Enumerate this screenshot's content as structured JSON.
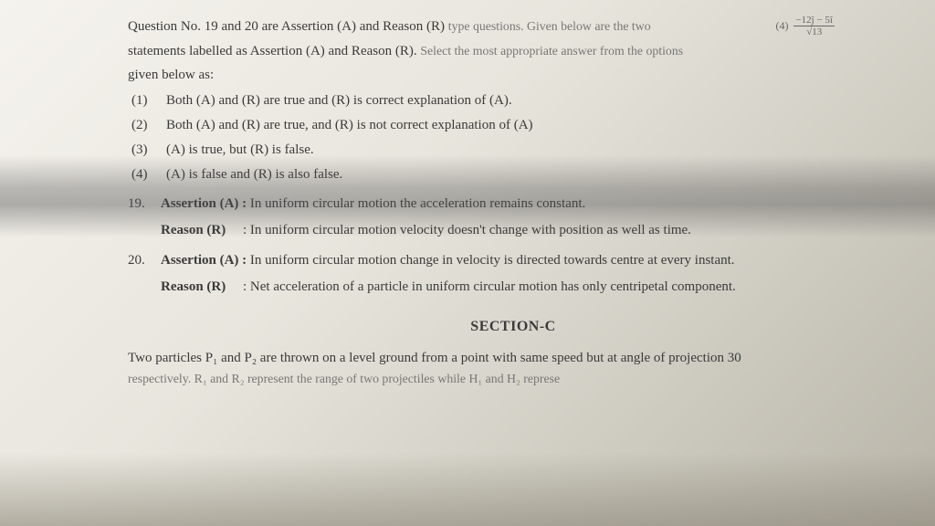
{
  "header": {
    "line1_a": "Question No. 19 and 20 are Assertion (A) and Reason (R)",
    "line1_b_faded": "type questions. Given below are the two",
    "line2_a": "statements labelled as Assertion (A) and Reason (R).",
    "line2_b_faded": "Select the most appropriate answer from the options",
    "line3": "given below as:",
    "opt4_label": "(4)",
    "opt4_num": "−12ĵ − 5î",
    "opt4_den": "√13"
  },
  "options": {
    "o1_num": "(1)",
    "o1_text": "Both (A) and (R) are true and (R) is correct explanation of (A).",
    "o2_num": "(2)",
    "o2_text": "Both (A) and (R) are true, and (R) is not correct explanation of (A)",
    "o3_num": "(3)",
    "o3_text": "(A) is true, but (R) is false.",
    "o4_num": "(4)",
    "o4_text": "(A) is false and (R) is also false."
  },
  "q19": {
    "num": "19.",
    "a_label": "Assertion (A) :",
    "a_text": "In uniform circular motion the acceleration remains constant.",
    "r_label": "Reason (R)",
    "r_sep": ":",
    "r_text": "In uniform circular motion velocity doesn't change with position as well as time."
  },
  "q20": {
    "num": "20.",
    "a_label": "Assertion (A) :",
    "a_text": "In uniform circular motion change in velocity is directed towards centre at every instant.",
    "r_label": "Reason (R)",
    "r_sep": ":",
    "r_text": "Net acceleration of a particle in uniform circular motion has only centripetal component."
  },
  "section_c": "SECTION-C",
  "bottom": {
    "l1": "Two particles P₁ and P₂ are thrown on a level ground from a point with same speed but at angle of projection 30",
    "l2_faded": "respectively. R₁ and R₂ represent the range of two projectiles while H₁ and H₂ represe"
  }
}
